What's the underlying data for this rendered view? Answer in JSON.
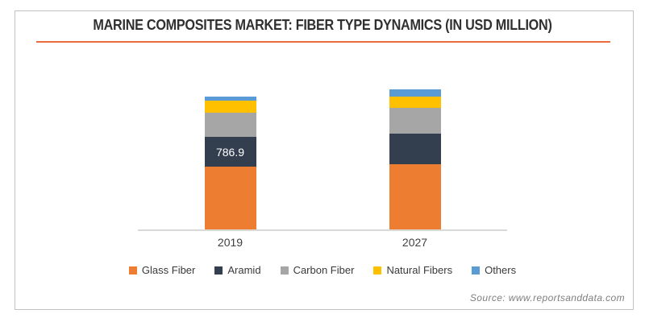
{
  "header": {
    "title": "MARINE COMPOSITES MARKET: FIBER TYPE DYNAMICS (IN USD MILLION)"
  },
  "footer": {
    "source": "Source: www.reportsanddata.com"
  },
  "chart_data": {
    "type": "bar",
    "stacked": true,
    "title": "MARINE COMPOSITES MARKET: FIBER TYPE DYNAMICS (IN USD MILLION)",
    "unit": "USD Million",
    "categories": [
      "2019",
      "2027"
    ],
    "series": [
      {
        "name": "Glass Fiber",
        "color": "#ED7D31",
        "values": [
          1659,
          1733
        ]
      },
      {
        "name": "Aramid",
        "color": "#333F4F",
        "values": [
          786.9,
          808
        ]
      },
      {
        "name": "Carbon Fiber",
        "color": "#A6A6A6",
        "values": [
          638,
          681
        ]
      },
      {
        "name": "Natural Fibers",
        "color": "#FFC000",
        "values": [
          319,
          298
        ]
      },
      {
        "name": "Others",
        "color": "#5B9BD5",
        "values": [
          106,
          191
        ]
      }
    ],
    "data_labels": [
      {
        "category": "2019",
        "series": "Aramid",
        "text": "786.9"
      }
    ],
    "ylim": [
      0,
      3935
    ],
    "grid": false,
    "axis_line_color": "#D9D9D9",
    "legend_position": "bottom",
    "note": "Only the 2019 Aramid segment carries a printed data label (786.9); remaining values are estimated from segment heights at the labeled scale."
  },
  "colors": {
    "accent_underline": "#ED6C3B",
    "frame_border": "#C2C2C2",
    "title_text": "#303030",
    "tick_text": "#404040",
    "legend_text": "#3A3A3A",
    "source_text": "#7F7F7F",
    "data_label_text": "#FFFFFF"
  }
}
